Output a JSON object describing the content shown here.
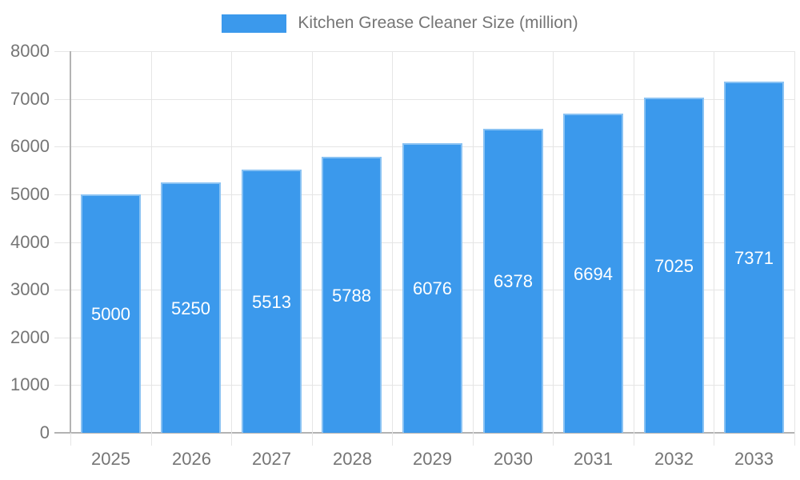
{
  "chart_data": {
    "type": "bar",
    "title": "Kitchen Grease Cleaner Size (million)",
    "series_name": "Kitchen Grease Cleaner Size (million)",
    "categories": [
      "2025",
      "2026",
      "2027",
      "2028",
      "2029",
      "2030",
      "2031",
      "2032",
      "2033"
    ],
    "values": [
      5000,
      5250,
      5513,
      5788,
      6076,
      6378,
      6694,
      7025,
      7371
    ],
    "xlabel": "",
    "ylabel": "",
    "ylim": [
      0,
      8000
    ],
    "y_ticks": [
      0,
      1000,
      2000,
      3000,
      4000,
      5000,
      6000,
      7000,
      8000
    ],
    "grid": true,
    "legend_position": "top",
    "bar_color": "#3b99ec",
    "value_label_color": "#ffffff",
    "axis_text_color": "#757575",
    "gridline_color": "#e5e5e5",
    "axis_line_color": "#b3b3b3"
  }
}
